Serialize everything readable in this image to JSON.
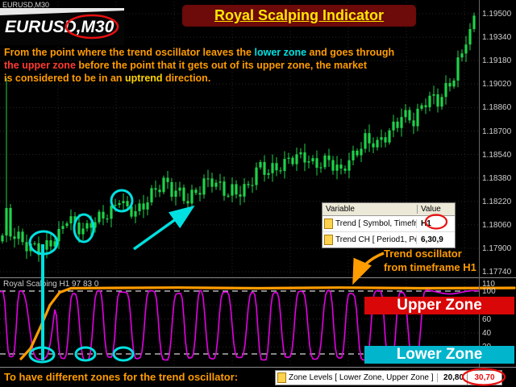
{
  "window": {
    "chart_label": "EURUSD,M30"
  },
  "logo": {
    "pair": "EURUSD",
    "tf": ",M30"
  },
  "title": {
    "text": "Royal Scalping Indicator"
  },
  "description": {
    "lines": [
      [
        {
          "t": "From the point where the trend oscillator leaves the ",
          "c": "orange"
        },
        {
          "t": "lower zone",
          "c": "cyan"
        },
        {
          "t": " and goes through",
          "c": "orange"
        }
      ],
      [
        {
          "t": "the upper zone",
          "c": "red"
        },
        {
          "t": " before the point that it gets out of its upper zone, the market",
          "c": "orange"
        }
      ],
      [
        {
          "t": "is considered to be in an ",
          "c": "orange"
        },
        {
          "t": "uptrend",
          "c": "gold"
        },
        {
          "t": " direction.",
          "c": "orange"
        }
      ]
    ]
  },
  "overlay_table": {
    "headers": [
      "Variable",
      "Value"
    ],
    "rows": [
      {
        "label": "Trend [ Symbol, Timeframe ]",
        "value": "H1"
      },
      {
        "label": "Trend CH [ Period1, Period2, BB ]",
        "value": "6,30,9"
      }
    ]
  },
  "callout": {
    "line1": "Trend oscillator",
    "line2": "from timeframe H1"
  },
  "panel": {
    "title": "Royal Scalping H1  97 83 0",
    "upper_zone": "Upper Zone",
    "lower_zone": "Lower Zone"
  },
  "footer": {
    "text": "To have different zones for the trend oscillator:",
    "table_label": "Zone Levels [ Lower Zone, Upper Zone ]",
    "value1": "20,80",
    "value2": "30,70"
  },
  "colors": {
    "orange": "#ff9c00",
    "cyan": "#00e0e0",
    "red": "#ff3b30",
    "gold": "#ffd400",
    "bull": "#1fd24a",
    "oscillator": "#e400e4",
    "trend_line": "#ff9c00",
    "upper_zone_bg": "#d90707",
    "lower_zone_bg": "#00b5cc",
    "annotation_cyan": "#00e0e0",
    "annotation_red": "#e81010"
  },
  "chart_data": {
    "type": "candlestick+oscillator",
    "symbol": "EURUSD",
    "timeframe": "M30",
    "price_axis": [
      "1.19500",
      "1.19340",
      "1.19180",
      "1.19020",
      "1.18860",
      "1.18700",
      "1.18540",
      "1.18380",
      "1.18220",
      "1.18060",
      "1.17900",
      "1.17740"
    ],
    "price_top": 1.195,
    "price_step": 0.0016,
    "candles": {
      "count": 118,
      "keypoints": [
        [
          0,
          1.18
        ],
        [
          1,
          1.1812
        ],
        [
          2,
          1.18
        ],
        [
          4,
          1.1797
        ],
        [
          6,
          1.1793
        ],
        [
          8,
          1.179
        ],
        [
          10,
          1.1788
        ],
        [
          12,
          1.1795
        ],
        [
          14,
          1.18
        ],
        [
          16,
          1.181
        ],
        [
          18,
          1.1806
        ],
        [
          20,
          1.1803
        ],
        [
          24,
          1.181
        ],
        [
          27,
          1.1816
        ],
        [
          29,
          1.1824
        ],
        [
          31,
          1.1815
        ],
        [
          34,
          1.1817
        ],
        [
          37,
          1.1826
        ],
        [
          40,
          1.1836
        ],
        [
          43,
          1.1828
        ],
        [
          46,
          1.1823
        ],
        [
          49,
          1.1832
        ],
        [
          52,
          1.1836
        ],
        [
          55,
          1.183
        ],
        [
          58,
          1.1827
        ],
        [
          61,
          1.1832
        ],
        [
          63,
          1.1845
        ],
        [
          66,
          1.1842
        ],
        [
          69,
          1.1847
        ],
        [
          72,
          1.1851
        ],
        [
          75,
          1.1853
        ],
        [
          78,
          1.1846
        ],
        [
          81,
          1.185
        ],
        [
          84,
          1.1843
        ],
        [
          87,
          1.1852
        ],
        [
          90,
          1.1865
        ],
        [
          93,
          1.186
        ],
        [
          96,
          1.187
        ],
        [
          99,
          1.188
        ],
        [
          102,
          1.1877
        ],
        [
          105,
          1.1892
        ],
        [
          108,
          1.189
        ],
        [
          111,
          1.1903
        ],
        [
          113,
          1.1915
        ],
        [
          115,
          1.193
        ],
        [
          117,
          1.1948
        ]
      ]
    },
    "oscillator": {
      "axis": [
        110,
        100,
        80,
        60,
        40,
        20,
        10
      ],
      "dips": [
        [
          14,
          7
        ],
        [
          51,
          16
        ],
        [
          78,
          8
        ],
        [
          107,
          9
        ],
        [
          136,
          8
        ],
        [
          171,
          9
        ],
        [
          205,
          9
        ],
        [
          236,
          8
        ],
        [
          263,
          9
        ],
        [
          297,
          10
        ],
        [
          327,
          8
        ],
        [
          357,
          9
        ],
        [
          391,
          10
        ],
        [
          421,
          8
        ],
        [
          452,
          9
        ],
        [
          484,
          8
        ],
        [
          514,
          9
        ]
      ],
      "orange_line": [
        [
          26,
          3
        ],
        [
          38,
          18
        ],
        [
          50,
          48
        ],
        [
          62,
          80
        ],
        [
          74,
          98
        ],
        [
          88,
          104
        ],
        [
          140,
          104.5
        ],
        [
          220,
          105
        ],
        [
          320,
          104
        ],
        [
          420,
          105
        ],
        [
          520,
          104
        ],
        [
          638,
          104.5
        ]
      ],
      "dashed_levels": [
        100,
        10
      ],
      "dotted_levels": [
        80,
        60,
        40,
        20
      ]
    }
  }
}
